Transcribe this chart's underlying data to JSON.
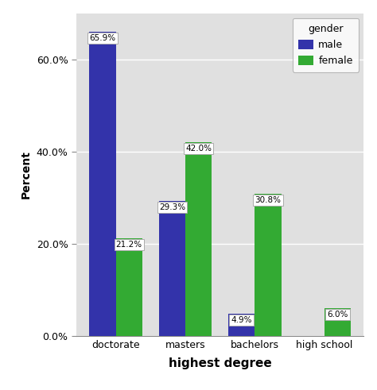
{
  "categories": [
    "doctorate",
    "masters",
    "bachelors",
    "high school"
  ],
  "male_values": [
    65.9,
    29.3,
    4.9,
    0.0
  ],
  "female_values": [
    21.2,
    42.0,
    30.8,
    6.0
  ],
  "male_color": "#3333aa",
  "female_color": "#33aa33",
  "xlabel": "highest degree",
  "ylabel": "Percent",
  "ylim": [
    0,
    70
  ],
  "yticks": [
    0.0,
    20.0,
    40.0,
    60.0
  ],
  "ytick_labels": [
    "0.0%",
    "20.0%",
    "40.0%",
    "60.0%"
  ],
  "legend_title": "gender",
  "legend_labels": [
    "male",
    "female"
  ],
  "bar_width": 0.38,
  "label_fontsize": 7.5,
  "axis_bg_color": "#e0e0e0",
  "fig_bg_color": "#ffffff",
  "bar_labels_male": [
    "65.9%",
    "29.3%",
    "4.9%",
    ""
  ],
  "bar_labels_female": [
    "21.2%",
    "42.0%",
    "30.8%",
    "6.0%"
  ]
}
